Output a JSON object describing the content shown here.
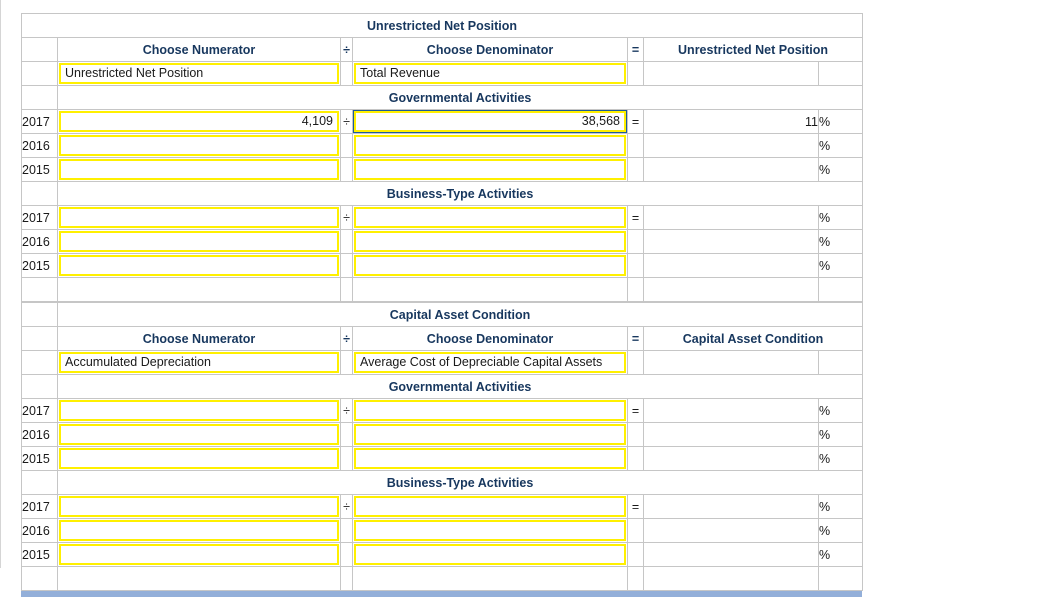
{
  "colors": {
    "header_blue": "#93AFD9",
    "header_text": "#17375E",
    "input_border_yellow": "#FFF000",
    "focused_input_border": "#1D5B99",
    "grid_line": "#C6C6C6",
    "divider_black": "#000000",
    "body_text": "#1A1A1A"
  },
  "tables": [
    {
      "title": "Unrestricted Net Position",
      "header": {
        "numerator_label": "Choose Numerator",
        "divide_symbol": "÷",
        "denominator_label": "Choose Denominator",
        "equals_symbol": "=",
        "result_label": "Unrestricted Net Position"
      },
      "chosen": {
        "numerator": "Unrestricted Net Position",
        "denominator": "Total Revenue"
      },
      "sections": [
        {
          "label": "Governmental Activities",
          "rows": [
            {
              "year": "2017",
              "numerator": "4,109",
              "divide": "÷",
              "denominator": "38,568",
              "denominator_focused": true,
              "equals": "=",
              "result": "11",
              "percent": "%"
            },
            {
              "year": "2016",
              "numerator": "",
              "divide": "",
              "denominator": "",
              "equals": "",
              "result": "",
              "percent": "%"
            },
            {
              "year": "2015",
              "numerator": "",
              "divide": "",
              "denominator": "",
              "equals": "",
              "result": "",
              "percent": "%"
            }
          ]
        },
        {
          "label": "Business-Type Activities",
          "rows": [
            {
              "year": "2017",
              "numerator": "",
              "divide": "÷",
              "denominator": "",
              "equals": "=",
              "result": "",
              "percent": "%"
            },
            {
              "year": "2016",
              "numerator": "",
              "divide": "",
              "denominator": "",
              "equals": "",
              "result": "",
              "percent": "%"
            },
            {
              "year": "2015",
              "numerator": "",
              "divide": "",
              "denominator": "",
              "equals": "",
              "result": "",
              "percent": "%"
            }
          ]
        }
      ]
    },
    {
      "title": "Capital Asset Condition",
      "header": {
        "numerator_label": "Choose Numerator",
        "divide_symbol": "÷",
        "denominator_label": "Choose Denominator",
        "equals_symbol": "=",
        "result_label": "Capital Asset Condition"
      },
      "chosen": {
        "numerator": "Accumulated Depreciation",
        "denominator": "Average Cost of Depreciable Capital Assets"
      },
      "sections": [
        {
          "label": "Governmental Activities",
          "rows": [
            {
              "year": "2017",
              "numerator": "",
              "divide": "÷",
              "denominator": "",
              "equals": "=",
              "result": "",
              "percent": "%"
            },
            {
              "year": "2016",
              "numerator": "",
              "divide": "",
              "denominator": "",
              "equals": "",
              "result": "",
              "percent": "%"
            },
            {
              "year": "2015",
              "numerator": "",
              "divide": "",
              "denominator": "",
              "equals": "",
              "result": "",
              "percent": "%"
            }
          ]
        },
        {
          "label": "Business-Type Activities",
          "rows": [
            {
              "year": "2017",
              "numerator": "",
              "divide": "÷",
              "denominator": "",
              "equals": "=",
              "result": "",
              "percent": "%"
            },
            {
              "year": "2016",
              "numerator": "",
              "divide": "",
              "denominator": "",
              "equals": "",
              "result": "",
              "percent": "%"
            },
            {
              "year": "2015",
              "numerator": "",
              "divide": "",
              "denominator": "",
              "equals": "",
              "result": "",
              "percent": "%"
            }
          ]
        }
      ]
    }
  ]
}
